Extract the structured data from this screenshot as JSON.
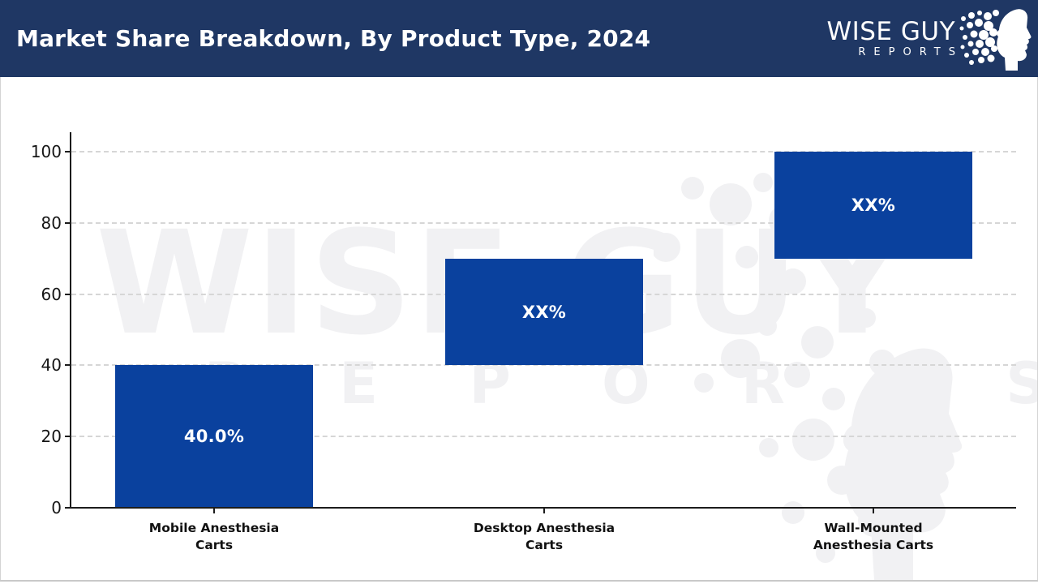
{
  "header": {
    "title": "Market Share Breakdown, By Product Type, 2024",
    "bg_color": "#1f3764",
    "logo": {
      "wordmark": "WISE GUY",
      "subtext": "REPORTS",
      "head_icon": "dotted-head-profile"
    }
  },
  "watermark": {
    "line1": "WISE GUY",
    "line2": "R E P O R T S"
  },
  "chart_data": {
    "type": "bar",
    "subtype": "floating-stacked-percentage",
    "title": "Market Share Breakdown, By Product Type, 2024",
    "categories": [
      "Mobile Anesthesia Carts",
      "Desktop Anesthesia Carts",
      "Wall-Mounted Anesthesia Carts"
    ],
    "categories_display": [
      [
        "Mobile Anesthesia",
        "Carts"
      ],
      [
        "Desktop Anesthesia",
        "Carts"
      ],
      [
        "Wall-Mounted",
        "Anesthesia Carts"
      ]
    ],
    "series": [
      {
        "name": "Market Share (%)",
        "segments": [
          {
            "category": "Mobile Anesthesia Carts",
            "from": 0,
            "to": 40,
            "label": "40.0%"
          },
          {
            "category": "Desktop Anesthesia Carts",
            "from": 40,
            "to": 70,
            "label": "XX%"
          },
          {
            "category": "Wall-Mounted Anesthesia Carts",
            "from": 70,
            "to": 100,
            "label": "XX%"
          }
        ]
      }
    ],
    "ylim": [
      0,
      100
    ],
    "yticks": [
      0,
      20,
      40,
      60,
      80,
      100
    ],
    "xlabel": "",
    "ylabel": "",
    "grid": "horizontal-dashed",
    "legend_position": "none",
    "colors": {
      "bar": "#0a419e",
      "bar_label": "#ffffff",
      "axis": "#1c1c1c",
      "tick_label": "#161616",
      "gridline": "#d6d6d6",
      "watermark": "#f1f1f3",
      "header_bg": "#1f3764",
      "header_text": "#ffffff"
    }
  }
}
